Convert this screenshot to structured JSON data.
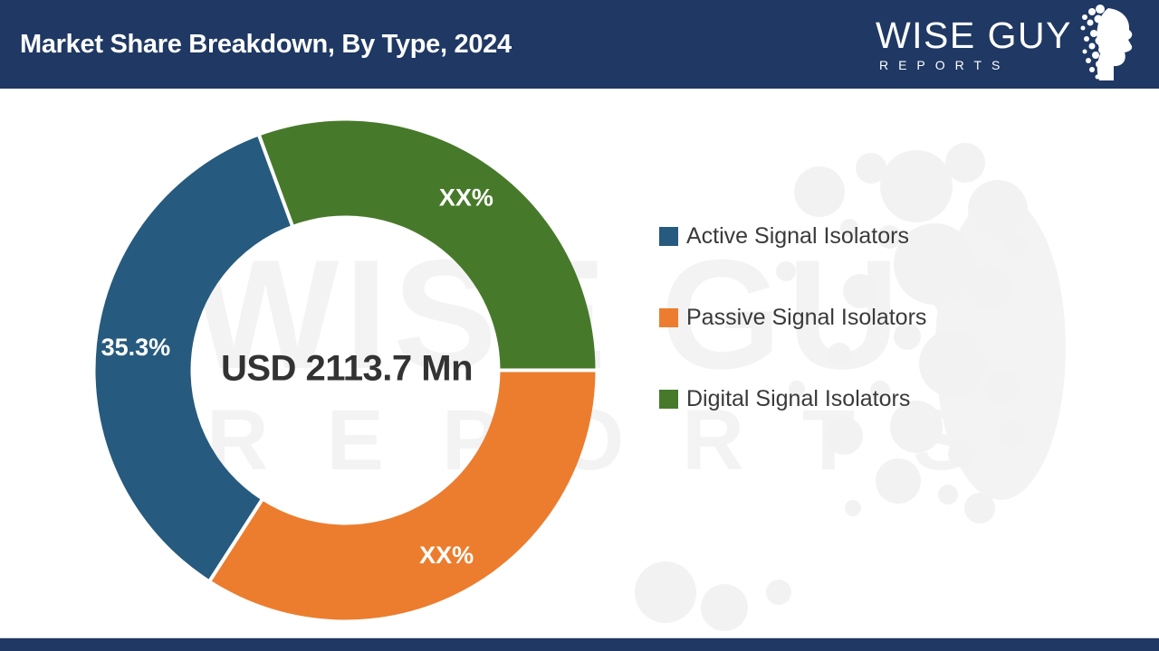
{
  "header": {
    "title": "Market Share Breakdown, By Type, 2024",
    "logo": {
      "line1": "WISE GUY",
      "line2": "REPORTS"
    }
  },
  "chart_data": {
    "type": "pie",
    "subtype": "donut",
    "title": "Market Share Breakdown, By Type, 2024",
    "center_label": "USD 2113.7 Mn",
    "legend_position": "right",
    "start_angle_deg": 0,
    "direction": "counterclockwise",
    "slices": [
      {
        "name": "Active Signal Isolators",
        "label": "35.3%",
        "share_est": 35.3,
        "color": "#265a7e"
      },
      {
        "name": "Passive Signal Isolators",
        "label": "XX%",
        "share_est": 34.1,
        "color": "#ec7d2e"
      },
      {
        "name": "Digital Signal Isolators",
        "label": "XX%",
        "share_est": 30.6,
        "color": "#47792a"
      }
    ],
    "draw_order_ccw_from_east": [
      2,
      0,
      1
    ]
  },
  "watermark": {
    "line1": "WISE GUY",
    "line2": "REPORTS"
  }
}
